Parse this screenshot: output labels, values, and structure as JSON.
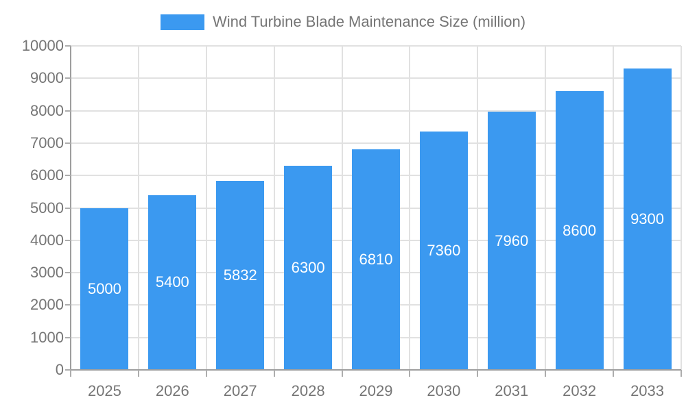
{
  "chart_data": {
    "type": "bar",
    "title": "",
    "legend": "Wind Turbine Blade Maintenance Size (million)",
    "legend_position": "top",
    "categories": [
      "2025",
      "2026",
      "2027",
      "2028",
      "2029",
      "2030",
      "2031",
      "2032",
      "2033"
    ],
    "values": [
      5000,
      5400,
      5832,
      6300,
      6810,
      7360,
      7960,
      8600,
      9300
    ],
    "xlabel": "",
    "ylabel": "",
    "ylim": [
      0,
      10000
    ],
    "y_ticks": [
      0,
      1000,
      2000,
      3000,
      4000,
      5000,
      6000,
      7000,
      8000,
      9000,
      10000
    ],
    "grid": true,
    "bar_color": "#3B99F0",
    "value_label_color": "#FFFFFF",
    "axis_text_color": "#757575",
    "grid_color": "#E1E1E1",
    "axis_line_color": "#9E9E9E"
  }
}
